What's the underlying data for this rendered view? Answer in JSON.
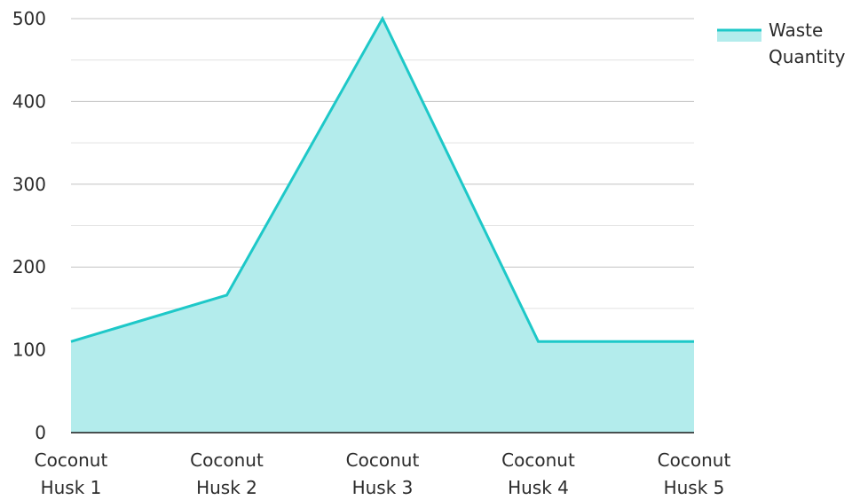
{
  "chart_data": {
    "type": "area",
    "categories": [
      "Coconut Husk 1",
      "Coconut Husk 2",
      "Coconut Husk 3",
      "Coconut Husk 4",
      "Coconut Husk 5"
    ],
    "category_lines": [
      [
        "Coconut",
        "Husk 1"
      ],
      [
        "Coconut",
        "Husk 2"
      ],
      [
        "Coconut",
        "Husk 3"
      ],
      [
        "Coconut",
        "Husk 4"
      ],
      [
        "Coconut",
        "Husk 5"
      ]
    ],
    "series": [
      {
        "name": "Waste Quantity",
        "values": [
          110,
          166,
          500,
          110,
          110
        ],
        "line_color": "#1ec8c8",
        "fill_color": "#b3ecec"
      }
    ],
    "legend": {
      "position": "top-right",
      "lines": [
        "Waste",
        "Quantity"
      ]
    },
    "ylim": [
      0,
      500
    ],
    "yticks": [
      0,
      100,
      200,
      300,
      400,
      500
    ],
    "grid": true,
    "minor_grid": true,
    "title": "",
    "xlabel": "",
    "ylabel": ""
  }
}
